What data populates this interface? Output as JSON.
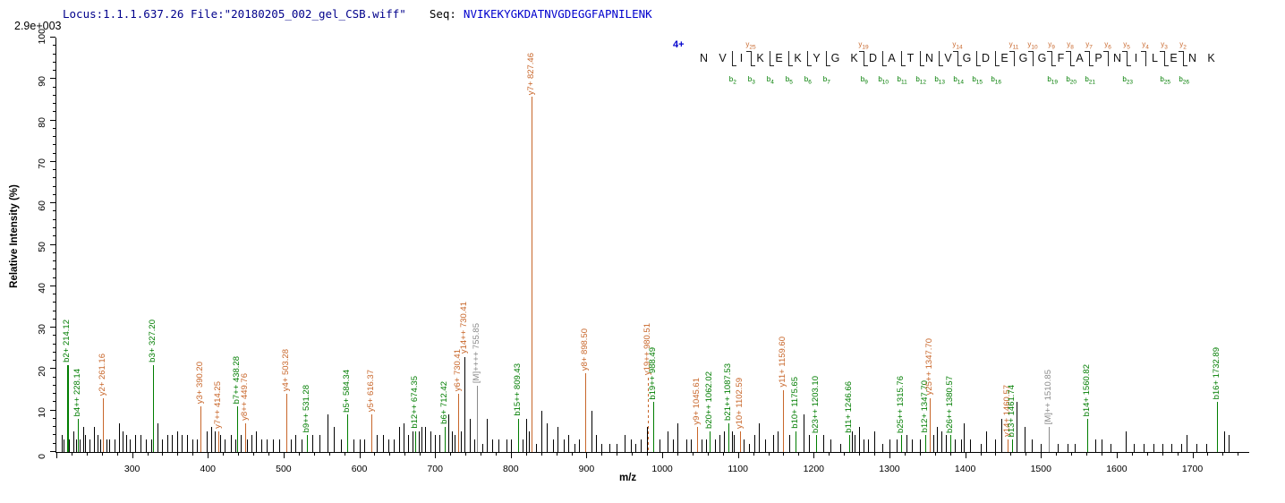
{
  "header": {
    "locus_file": "Locus:1.1.1.637.26 File:\"20180205_002_gel_CSB.wiff\"",
    "seq_label": "Seq:",
    "seq_value": "NVIKEKYGKDATNVGDEGGFAPNILENK"
  },
  "colors": {
    "y_ion": "#c8662a",
    "b_ion": "#007d00",
    "precursor": "#8a8a8a",
    "peak": "#000000",
    "header_navy": "#00008b",
    "sequence_blue": "#0000cd"
  },
  "sequence_panel": {
    "charge": "4+",
    "residues": [
      "N",
      "V",
      "I",
      "K",
      "E",
      "K",
      "Y",
      "G",
      "K",
      "D",
      "A",
      "T",
      "N",
      "V",
      "G",
      "D",
      "E",
      "G",
      "G",
      "F",
      "A",
      "P",
      "N",
      "I",
      "L",
      "E",
      "N",
      "K"
    ],
    "cleavages": [
      {
        "after": 2,
        "b": "b2"
      },
      {
        "after": 3,
        "y": "y25",
        "b": "b3"
      },
      {
        "after": 4,
        "b": "b4"
      },
      {
        "after": 5,
        "b": "b5"
      },
      {
        "after": 6,
        "b": "b6"
      },
      {
        "after": 7,
        "b": "b7"
      },
      {
        "after": 9,
        "y": "y19",
        "b": "b9"
      },
      {
        "after": 10,
        "b": "b10"
      },
      {
        "after": 11,
        "b": "b11"
      },
      {
        "after": 12,
        "b": "b12"
      },
      {
        "after": 13,
        "b": "b13"
      },
      {
        "after": 14,
        "y": "y14",
        "b": "b14"
      },
      {
        "after": 15,
        "b": "b15"
      },
      {
        "after": 16,
        "b": "b16"
      },
      {
        "after": 17,
        "y": "y11"
      },
      {
        "after": 18,
        "y": "y10"
      },
      {
        "after": 19,
        "y": "y9",
        "b": "b19"
      },
      {
        "after": 20,
        "y": "y8",
        "b": "b20"
      },
      {
        "after": 21,
        "y": "y7",
        "b": "b21"
      },
      {
        "after": 22,
        "y": "y6"
      },
      {
        "after": 23,
        "y": "y5",
        "b": "b23"
      },
      {
        "after": 24,
        "y": "y4"
      },
      {
        "after": 25,
        "y": "y3",
        "b": "b25"
      },
      {
        "after": 26,
        "y": "y2",
        "b": "b26"
      }
    ]
  },
  "chart_data": {
    "type": "bar",
    "subtype": "ms2-stick-spectrum",
    "title": "",
    "xlabel": "m/z",
    "ylabel": "Relative  Intensity (%)",
    "intensity_scale": "2.9e+003",
    "xlim": [
      200,
      1775
    ],
    "ylim": [
      0,
      100
    ],
    "x_axis": {
      "major_tick_step": 100,
      "minor_tick_step": 20,
      "tick_labels": [
        300,
        400,
        500,
        600,
        700,
        800,
        900,
        1000,
        1100,
        1200,
        1300,
        1400,
        1500,
        1600,
        1700
      ]
    },
    "y_axis": {
      "major_tick_step": 10,
      "minor_tick_step": 2,
      "tick_labels": [
        0,
        10,
        20,
        30,
        40,
        50,
        60,
        70,
        80,
        90,
        100
      ]
    },
    "labeled_peaks": [
      {
        "mz": 214.12,
        "intensity": 21,
        "label": "b2+ 214.12",
        "ion": "b",
        "w": 2
      },
      {
        "mz": 228.14,
        "intensity": 8,
        "label": "b4++ 228.14",
        "ion": "b"
      },
      {
        "mz": 261.16,
        "intensity": 13,
        "label": "y2+ 261.16",
        "ion": "y"
      },
      {
        "mz": 327.2,
        "intensity": 21,
        "label": "b3+ 327.20",
        "ion": "b"
      },
      {
        "mz": 390.2,
        "intensity": 11,
        "label": "y3+ 390.20",
        "ion": "y"
      },
      {
        "mz": 414.25,
        "intensity": 5,
        "label": "y7++ 414.25",
        "ion": "y"
      },
      {
        "mz": 438.28,
        "intensity": 11,
        "label": "b7++ 438.28",
        "ion": "b"
      },
      {
        "mz": 449.76,
        "intensity": 7,
        "label": "y8++ 449.76",
        "ion": "y"
      },
      {
        "mz": 503.28,
        "intensity": 14,
        "label": "y4+ 503.28",
        "ion": "y"
      },
      {
        "mz": 531.28,
        "intensity": 4,
        "label": "b9++ 531.28",
        "ion": "b"
      },
      {
        "mz": 584.34,
        "intensity": 9,
        "label": "b5+ 584.34",
        "ion": "b"
      },
      {
        "mz": 616.37,
        "intensity": 9,
        "label": "y5+ 616.37",
        "ion": "y"
      },
      {
        "mz": 674.35,
        "intensity": 5,
        "label": "b12++ 674.35",
        "ion": "b"
      },
      {
        "mz": 712.42,
        "intensity": 6,
        "label": "b6+ 712.42",
        "ion": "b"
      },
      {
        "mz": 730.41,
        "intensity": 14,
        "label": "y6+ 730.41",
        "ion": "y"
      },
      {
        "mz": 730.41,
        "plot_mz": 739,
        "intensity": 23,
        "label": "y14++ 730.41",
        "ion": "y",
        "peak_color": "#000000"
      },
      {
        "mz": 755.85,
        "intensity": 16,
        "label": "[M]++++ 755.85",
        "ion": "M"
      },
      {
        "mz": 809.43,
        "intensity": 8,
        "label": "b15++ 809.43",
        "ion": "b"
      },
      {
        "mz": 827.46,
        "intensity": 100,
        "label": "y7+ 827.46",
        "ion": "y"
      },
      {
        "mz": 898.5,
        "intensity": 19,
        "label": "y8+ 898.50",
        "ion": "y"
      },
      {
        "mz": 980.51,
        "intensity": 18,
        "label": "y19++ 980.51",
        "ion": "y",
        "dashed": true
      },
      {
        "mz": 988.49,
        "intensity": 12,
        "label": "b19++ 988.49",
        "ion": "b"
      },
      {
        "mz": 1045.61,
        "intensity": 6,
        "label": "y9+ 1045.61",
        "ion": "y"
      },
      {
        "mz": 1062.02,
        "intensity": 5,
        "label": "b20++ 1062.02",
        "ion": "b"
      },
      {
        "mz": 1087.53,
        "intensity": 7,
        "label": "b21++ 1087.53",
        "ion": "b"
      },
      {
        "mz": 1102.59,
        "intensity": 5,
        "label": "y10+ 1102.59",
        "ion": "y"
      },
      {
        "mz": 1159.6,
        "intensity": 15,
        "label": "y11+ 1159.60",
        "ion": "y"
      },
      {
        "mz": 1175.65,
        "intensity": 5,
        "label": "b10+ 1175.65",
        "ion": "b"
      },
      {
        "mz": 1203.1,
        "intensity": 4,
        "label": "b23++ 1203.10",
        "ion": "b"
      },
      {
        "mz": 1246.66,
        "intensity": 4,
        "label": "b11+ 1246.66",
        "ion": "b"
      },
      {
        "mz": 1315.76,
        "intensity": 4,
        "label": "b25++ 1315.76",
        "ion": "b"
      },
      {
        "mz": 1347.7,
        "intensity": 4,
        "label": "b12+ 1347.70",
        "ion": "b"
      },
      {
        "mz": 1347.7,
        "plot_mz": 1353,
        "intensity": 13,
        "label": "y25++ 1347.70",
        "ion": "y"
      },
      {
        "mz": 1380.57,
        "intensity": 4,
        "label": "b26++ 1380.57",
        "ion": "b"
      },
      {
        "mz": 1460.57,
        "plot_mz": 1456,
        "intensity": 3,
        "label": "y14+ 1460.57",
        "ion": "y"
      },
      {
        "mz": 1461.74,
        "plot_mz": 1462,
        "intensity": 3,
        "label": "b13+ 1461.74",
        "ion": "b"
      },
      {
        "mz": 1510.85,
        "intensity": 6,
        "label": "[M]++ 1510.85",
        "ion": "M"
      },
      {
        "mz": 1560.82,
        "intensity": 8,
        "label": "b14+ 1560.82",
        "ion": "b"
      },
      {
        "mz": 1732.89,
        "intensity": 12,
        "label": "b16+ 1732.89",
        "ion": "b"
      }
    ],
    "unlabeled_peaks": [
      [
        207,
        4
      ],
      [
        210,
        3
      ],
      [
        216,
        3
      ],
      [
        222,
        5
      ],
      [
        226,
        3
      ],
      [
        231,
        3
      ],
      [
        235,
        6
      ],
      [
        238,
        4
      ],
      [
        244,
        3
      ],
      [
        250,
        6
      ],
      [
        254,
        4
      ],
      [
        258,
        3
      ],
      [
        266,
        3
      ],
      [
        270,
        3
      ],
      [
        277,
        3
      ],
      [
        283,
        7
      ],
      [
        287,
        5
      ],
      [
        292,
        4
      ],
      [
        297,
        3
      ],
      [
        304,
        4
      ],
      [
        311,
        4
      ],
      [
        318,
        3
      ],
      [
        325,
        3
      ],
      [
        333,
        7
      ],
      [
        340,
        3
      ],
      [
        347,
        4
      ],
      [
        353,
        4
      ],
      [
        359,
        5
      ],
      [
        366,
        4
      ],
      [
        373,
        4
      ],
      [
        380,
        3
      ],
      [
        386,
        3
      ],
      [
        398,
        5
      ],
      [
        404,
        6
      ],
      [
        409,
        5
      ],
      [
        416,
        4
      ],
      [
        422,
        3
      ],
      [
        430,
        4
      ],
      [
        436,
        3
      ],
      [
        443,
        4
      ],
      [
        452,
        3
      ],
      [
        458,
        4
      ],
      [
        464,
        5
      ],
      [
        470,
        3
      ],
      [
        478,
        3
      ],
      [
        486,
        3
      ],
      [
        494,
        3
      ],
      [
        510,
        3
      ],
      [
        516,
        4
      ],
      [
        524,
        3
      ],
      [
        538,
        4
      ],
      [
        547,
        4
      ],
      [
        558,
        9
      ],
      [
        566,
        6
      ],
      [
        576,
        3
      ],
      [
        592,
        3
      ],
      [
        600,
        3
      ],
      [
        606,
        3
      ],
      [
        623,
        4
      ],
      [
        631,
        4
      ],
      [
        638,
        3
      ],
      [
        645,
        3
      ],
      [
        652,
        6
      ],
      [
        658,
        7
      ],
      [
        664,
        4
      ],
      [
        670,
        5
      ],
      [
        678,
        5
      ],
      [
        682,
        6
      ],
      [
        687,
        6
      ],
      [
        694,
        5
      ],
      [
        700,
        4
      ],
      [
        706,
        4
      ],
      [
        718,
        9
      ],
      [
        722,
        5
      ],
      [
        726,
        4
      ],
      [
        734,
        5
      ],
      [
        746,
        8
      ],
      [
        752,
        3
      ],
      [
        762,
        2
      ],
      [
        768,
        8
      ],
      [
        776,
        3
      ],
      [
        784,
        3
      ],
      [
        794,
        3
      ],
      [
        800,
        3
      ],
      [
        815,
        3
      ],
      [
        820,
        8
      ],
      [
        824,
        5
      ],
      [
        833,
        2
      ],
      [
        840,
        10
      ],
      [
        848,
        7
      ],
      [
        856,
        3
      ],
      [
        862,
        6
      ],
      [
        870,
        3
      ],
      [
        876,
        4
      ],
      [
        884,
        2
      ],
      [
        890,
        3
      ],
      [
        906,
        10
      ],
      [
        912,
        4
      ],
      [
        920,
        2
      ],
      [
        930,
        2
      ],
      [
        940,
        2
      ],
      [
        950,
        4
      ],
      [
        958,
        3
      ],
      [
        965,
        2
      ],
      [
        972,
        3
      ],
      [
        980,
        6
      ],
      [
        996,
        3
      ],
      [
        1007,
        5
      ],
      [
        1014,
        3
      ],
      [
        1020,
        7
      ],
      [
        1032,
        3
      ],
      [
        1038,
        3
      ],
      [
        1052,
        3
      ],
      [
        1058,
        3
      ],
      [
        1070,
        3
      ],
      [
        1076,
        4
      ],
      [
        1082,
        5
      ],
      [
        1092,
        5
      ],
      [
        1095,
        4
      ],
      [
        1108,
        3
      ],
      [
        1114,
        2
      ],
      [
        1122,
        4
      ],
      [
        1128,
        7
      ],
      [
        1136,
        3
      ],
      [
        1146,
        4
      ],
      [
        1152,
        5
      ],
      [
        1160,
        8
      ],
      [
        1168,
        4
      ],
      [
        1186,
        9
      ],
      [
        1194,
        4
      ],
      [
        1212,
        4
      ],
      [
        1222,
        3
      ],
      [
        1235,
        2
      ],
      [
        1250,
        5
      ],
      [
        1254,
        4
      ],
      [
        1260,
        6
      ],
      [
        1266,
        3
      ],
      [
        1272,
        3
      ],
      [
        1280,
        5
      ],
      [
        1290,
        2
      ],
      [
        1300,
        3
      ],
      [
        1310,
        3
      ],
      [
        1322,
        4
      ],
      [
        1330,
        3
      ],
      [
        1340,
        3
      ],
      [
        1358,
        4
      ],
      [
        1363,
        6
      ],
      [
        1368,
        5
      ],
      [
        1374,
        4
      ],
      [
        1386,
        3
      ],
      [
        1394,
        3
      ],
      [
        1398,
        7
      ],
      [
        1406,
        3
      ],
      [
        1420,
        2
      ],
      [
        1428,
        5
      ],
      [
        1440,
        3
      ],
      [
        1448,
        8
      ],
      [
        1468,
        12
      ],
      [
        1478,
        6
      ],
      [
        1488,
        3
      ],
      [
        1500,
        2
      ],
      [
        1522,
        2
      ],
      [
        1535,
        2
      ],
      [
        1545,
        2
      ],
      [
        1572,
        3
      ],
      [
        1580,
        3
      ],
      [
        1592,
        2
      ],
      [
        1612,
        5
      ],
      [
        1622,
        2
      ],
      [
        1635,
        2
      ],
      [
        1648,
        2
      ],
      [
        1660,
        2
      ],
      [
        1672,
        2
      ],
      [
        1685,
        2
      ],
      [
        1692,
        4
      ],
      [
        1705,
        2
      ],
      [
        1718,
        2
      ],
      [
        1742,
        5
      ],
      [
        1748,
        4
      ]
    ]
  }
}
